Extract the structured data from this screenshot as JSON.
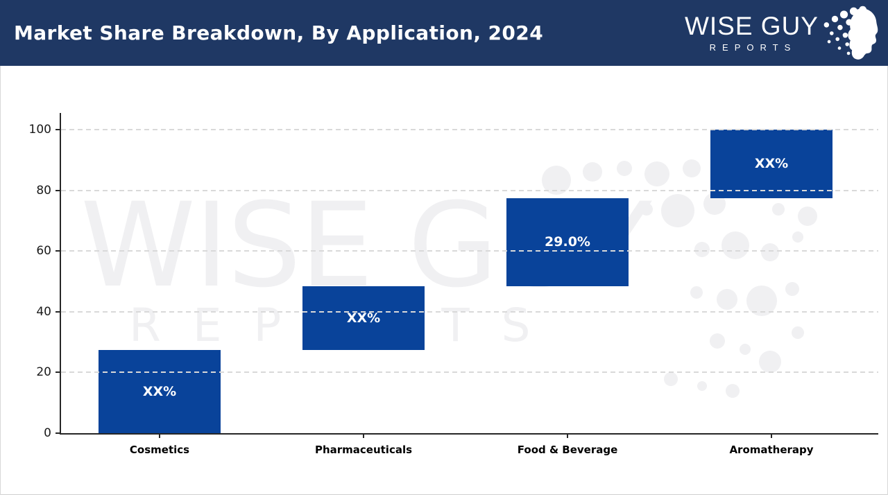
{
  "header": {
    "title": "Market Share Breakdown, By Application, 2024",
    "logo": {
      "line1": "WISE GUY",
      "line2": "REPORTS"
    }
  },
  "watermark": {
    "line1": "WISE GUY",
    "line2": "REPORTS"
  },
  "colors": {
    "header_bg": "#1f3864",
    "bar_blue": "#09439a",
    "grid": "#d9d9d9",
    "axis": "#262626",
    "watermark_gray": "#f0f0f2",
    "label_white": "#ffffff"
  },
  "chart_data": {
    "type": "bar",
    "subtype": "waterfall",
    "title": "Market Share Breakdown, By Application, 2024",
    "categories": [
      "Cosmetics",
      "Pharmaceuticals",
      "Food & Beverage",
      "Aromatherapy"
    ],
    "segments": [
      {
        "category": "Cosmetics",
        "start": 0,
        "end": 27.5,
        "value_label": "XX%"
      },
      {
        "category": "Pharmaceuticals",
        "start": 27.5,
        "end": 48.5,
        "value_label": "XX%"
      },
      {
        "category": "Food & Beverage",
        "start": 48.5,
        "end": 77.5,
        "value_label": "29.0%"
      },
      {
        "category": "Aromatherapy",
        "start": 77.5,
        "end": 100,
        "value_label": "XX%"
      }
    ],
    "yticks": [
      0,
      20,
      40,
      60,
      80,
      100
    ],
    "ytick_labels": [
      "0",
      "20",
      "40",
      "60",
      "80",
      "100"
    ],
    "ylim": [
      0,
      100
    ],
    "xlabel": "",
    "ylabel": "",
    "grid": true,
    "grid_style": "dashed",
    "legend": "none",
    "bar_color": "#09439a",
    "value_label_color": "#ffffff"
  }
}
